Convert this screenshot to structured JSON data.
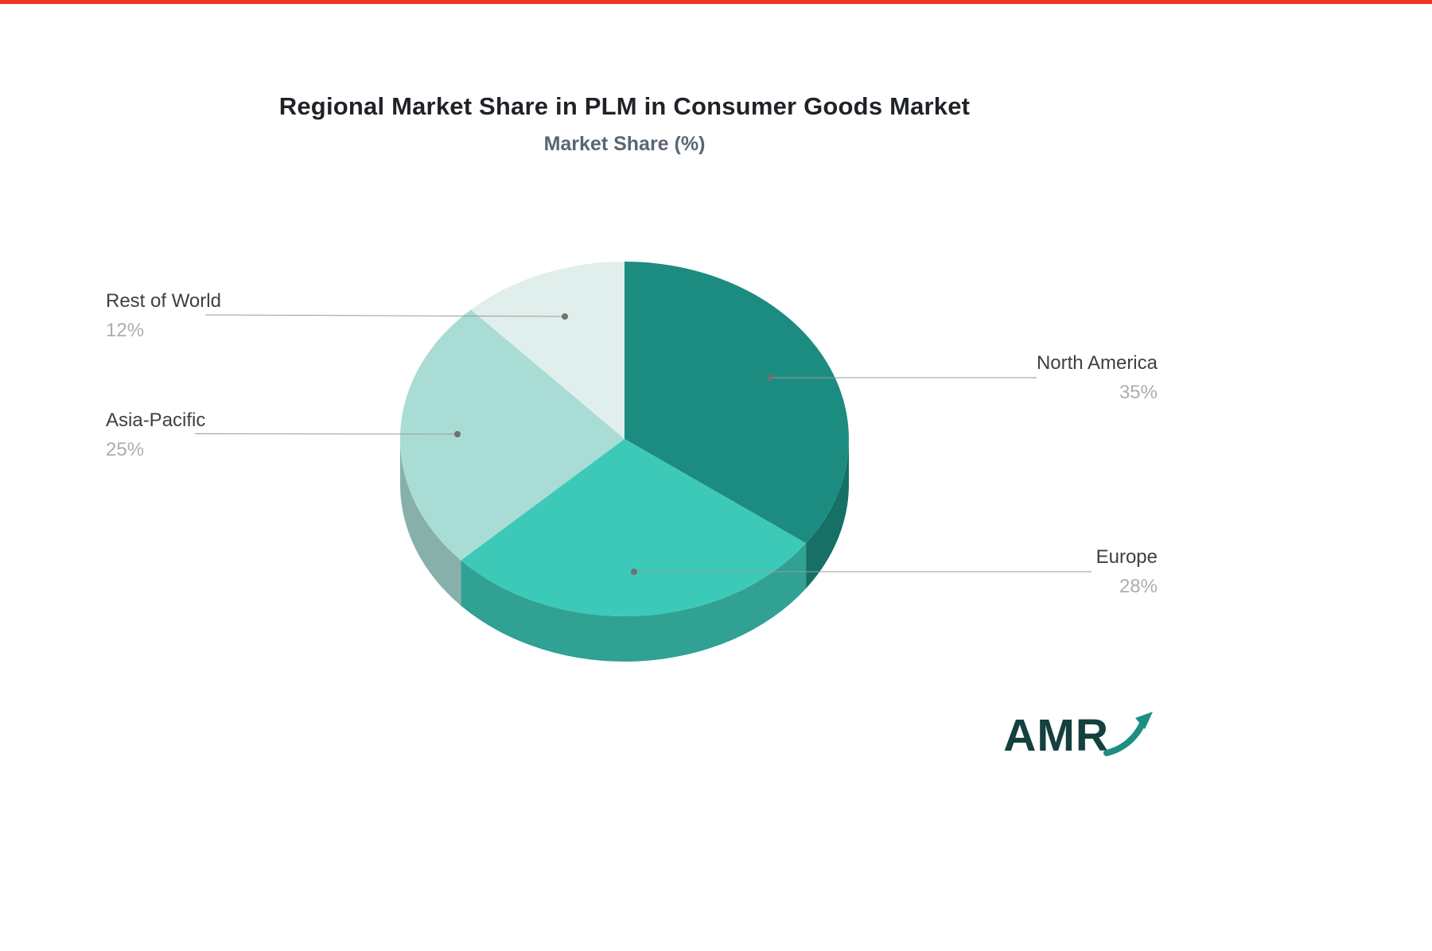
{
  "chart_data": {
    "type": "pie",
    "style": "3d",
    "title": "Regional Market Share in PLM in Consumer Goods Market",
    "subtitle": "Market Share (%)",
    "unit": "%",
    "direction": "clockwise",
    "start_angle_deg": 0,
    "slices": [
      {
        "label": "North America",
        "value": 35,
        "value_text": "35%",
        "color": "#1c8c80"
      },
      {
        "label": "Europe",
        "value": 28,
        "value_text": "28%",
        "color": "#3cc9b8"
      },
      {
        "label": "Asia-Pacific",
        "value": 25,
        "value_text": "25%",
        "color": "#a9dcd5"
      },
      {
        "label": "Rest of World",
        "value": 12,
        "value_text": "12%",
        "color": "#e1efec"
      }
    ],
    "legend_position": "none",
    "labels_style": "leader-lines"
  },
  "brand": {
    "logo_text": "AMR"
  },
  "colors": {
    "accent_bar": "#ee3524",
    "leader_line": "#9b9b9b",
    "leader_dot": "#707070",
    "label_name": "#3d4043",
    "label_value": "#a9aeb3",
    "logo_text": "#14413d",
    "logo_arrow": "#1d8e82"
  }
}
